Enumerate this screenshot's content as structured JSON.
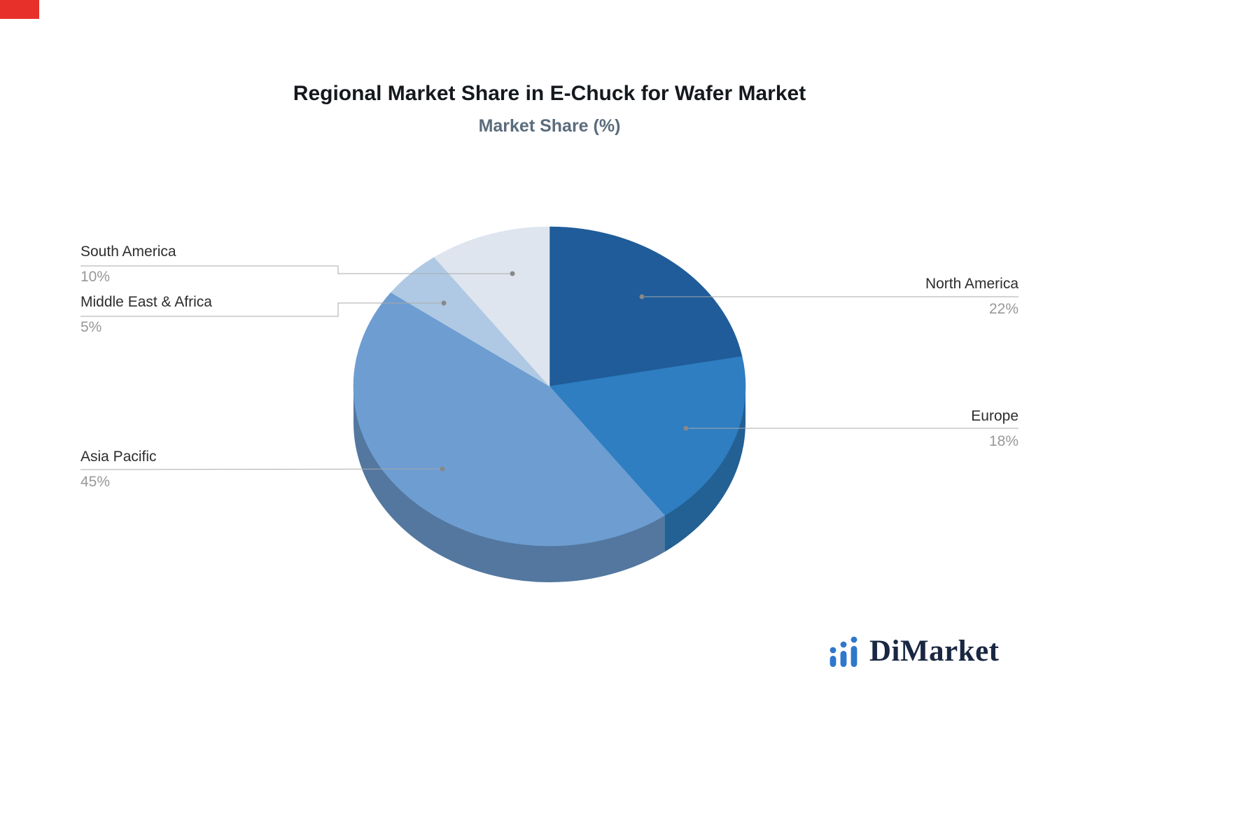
{
  "chart_data": {
    "type": "pie",
    "title": "Regional Market Share in E-Chuck for Wafer Market",
    "subtitle": "Market Share (%)",
    "unit": "%",
    "effect": "3d",
    "start_angle_deg": 0,
    "direction": "clockwise",
    "labels": [
      "North America",
      "Europe",
      "Asia Pacific",
      "Middle East & Africa",
      "South America"
    ],
    "values": [
      22,
      18,
      45,
      5,
      10
    ],
    "value_labels": [
      "22%",
      "18%",
      "45%",
      "5%",
      "10%"
    ],
    "colors": [
      "#1F5C99",
      "#2E7EC1",
      "#6D9DD1",
      "#AFC9E4",
      "#DEE5EF"
    ],
    "label_sides": [
      "right",
      "right",
      "left",
      "left",
      "left"
    ],
    "legend_position": "callout-labels"
  },
  "brand": {
    "name": "DiMarket",
    "icon": "bar-chart-logo",
    "accent_color": "#2E77CC",
    "text_color": "#1A2742"
  },
  "decoration": {
    "corner_flag_color": "#E8302A"
  }
}
